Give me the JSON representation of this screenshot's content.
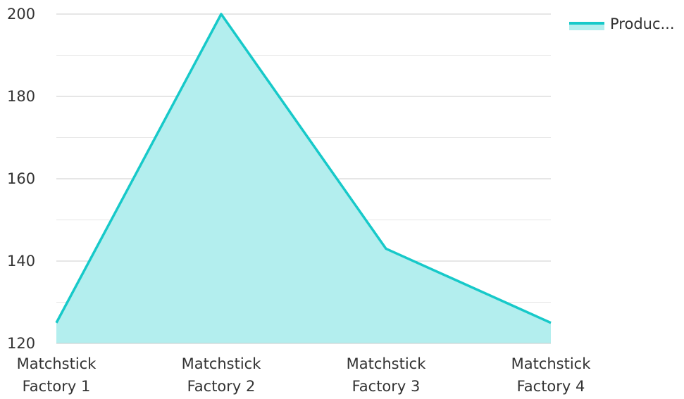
{
  "chart_data": {
    "type": "area",
    "categories": [
      "Matchstick Factory 1",
      "Matchstick Factory 2",
      "Matchstick Factory 3",
      "Matchstick Factory 4"
    ],
    "category_lines": [
      [
        "Matchstick",
        "Factory 1"
      ],
      [
        "Matchstick",
        "Factory 2"
      ],
      [
        "Matchstick",
        "Factory 3"
      ],
      [
        "Matchstick",
        "Factory 4"
      ]
    ],
    "series": [
      {
        "name": "Produc...",
        "values": [
          125,
          200,
          143,
          125
        ]
      }
    ],
    "ylim": [
      120,
      200
    ],
    "yticks": [
      120,
      140,
      160,
      180,
      200
    ],
    "grid": true,
    "legend_position": "top-right",
    "colors": {
      "line": "#17c9c9",
      "fill": "#b3eeee",
      "grid_major": "#cccccc",
      "grid_minor": "#e6e6e6",
      "text": "#333333"
    }
  }
}
